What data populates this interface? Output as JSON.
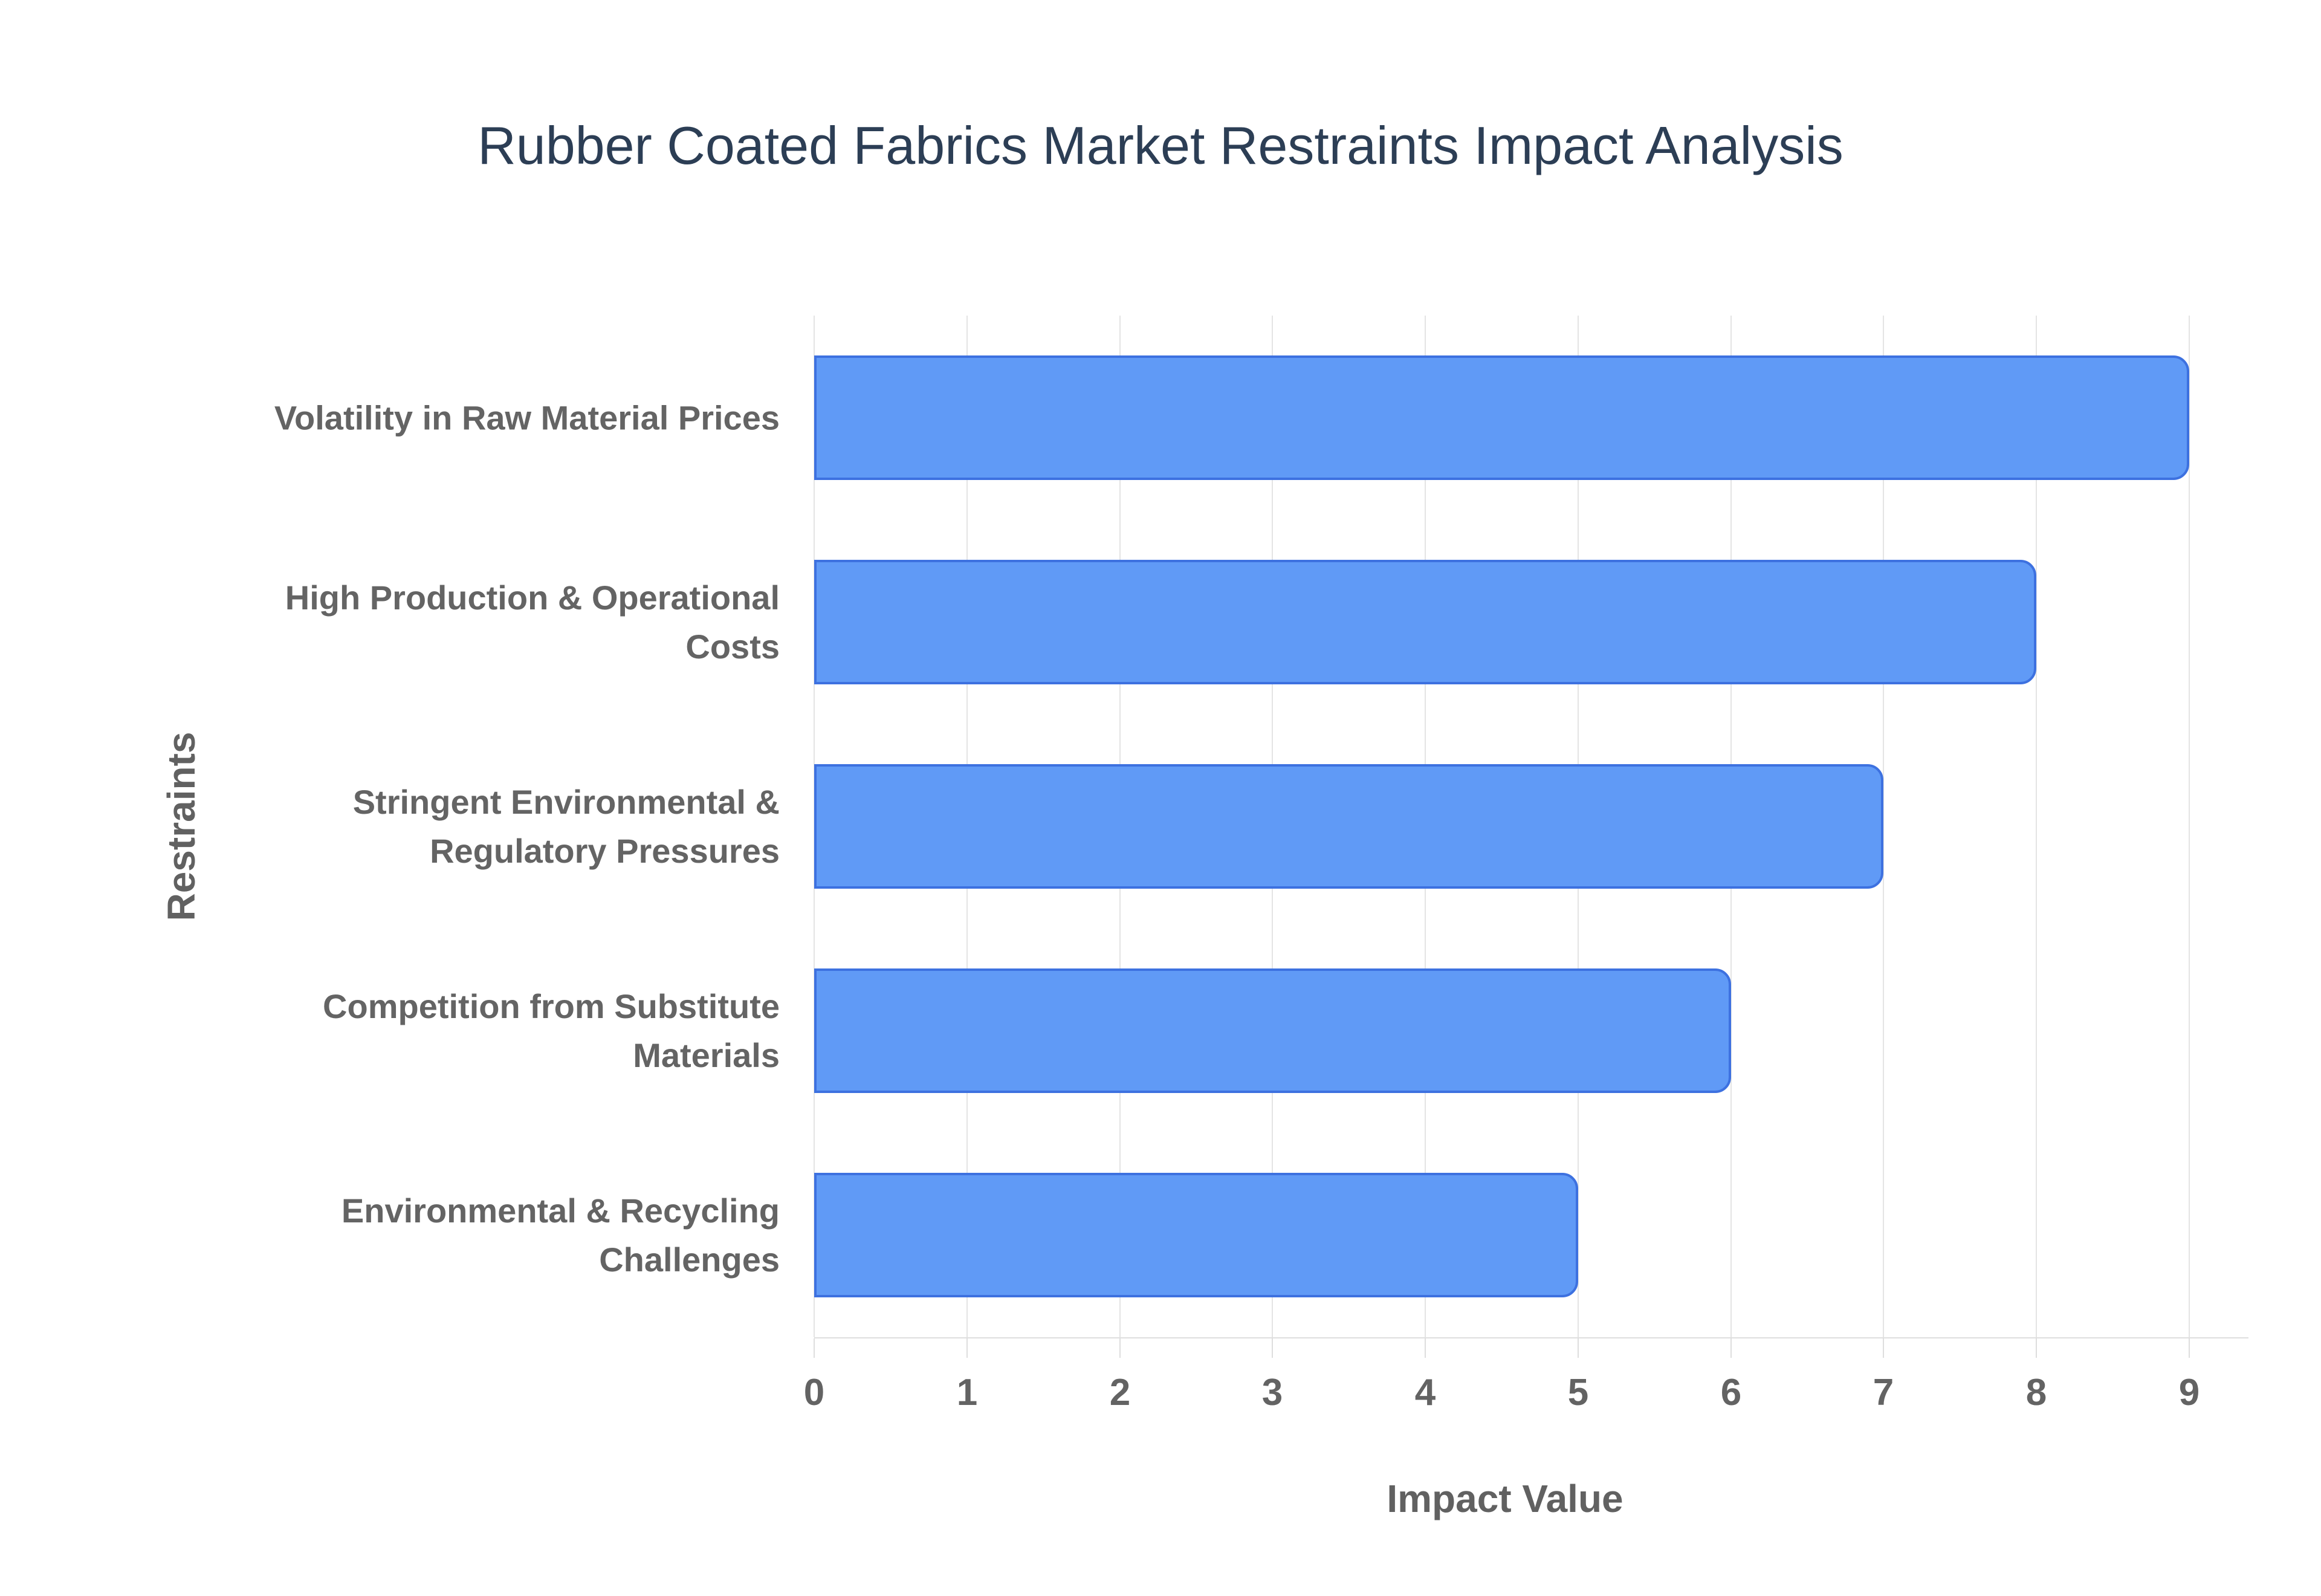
{
  "chart_data": {
    "type": "bar",
    "orientation": "horizontal",
    "title": "Rubber Coated Fabrics Market Restraints Impact Analysis",
    "xlabel": "Impact Value",
    "ylabel": "Restraints",
    "categories": [
      "Volatility in Raw Material Prices",
      "High Production & Operational Costs",
      "Stringent Environmental & Regulatory Pressures",
      "Competition from Substitute Materials",
      "Environmental & Recycling Challenges"
    ],
    "values": [
      9,
      8,
      7,
      6,
      5
    ],
    "xlim": [
      0,
      9
    ],
    "xticks": [
      0,
      1,
      2,
      3,
      4,
      5,
      6,
      7,
      8,
      9
    ],
    "grid": true,
    "legend": "none",
    "colors": {
      "bar_fill": "#609af6",
      "bar_border": "#3d71e0",
      "gridline": "#e4e4e4",
      "axis_line": "#dedede",
      "title_text": "#2c3e55",
      "axis_text": "#616161",
      "tick_text": "#636363",
      "category_text": "#646464",
      "background": "#ffffff"
    }
  }
}
